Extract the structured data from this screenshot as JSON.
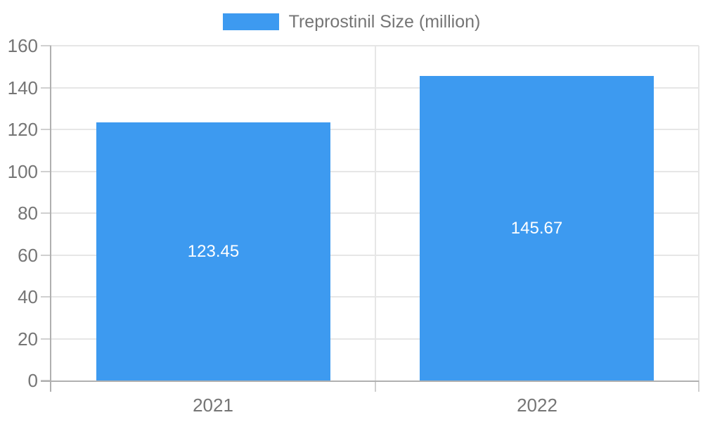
{
  "chart_data": {
    "type": "bar",
    "title": "",
    "legend_label": "Treprostinil Size (million)",
    "legend_position": "top",
    "categories": [
      "2021",
      "2022"
    ],
    "series": [
      {
        "name": "Treprostinil Size (million)",
        "values": [
          123.45,
          145.67
        ],
        "data_labels": [
          "123.45",
          "145.67"
        ]
      }
    ],
    "xlabel": "",
    "ylabel": "",
    "ylim": [
      0,
      160
    ],
    "ytick_step": 20,
    "ytick_labels": [
      "0",
      "20",
      "40",
      "60",
      "80",
      "100",
      "120",
      "140",
      "160"
    ],
    "grid": "horizontal and category boundaries",
    "legend_swatch_color": "#3d9af0",
    "colors": {
      "bar": "#3d9af0",
      "axis_text": "#757575",
      "data_label_text": "#ffffff",
      "gridline": "#e6e6e6",
      "axis_line": "#b0b0b0",
      "tick": "#d0d0d0",
      "background": "#ffffff"
    }
  }
}
